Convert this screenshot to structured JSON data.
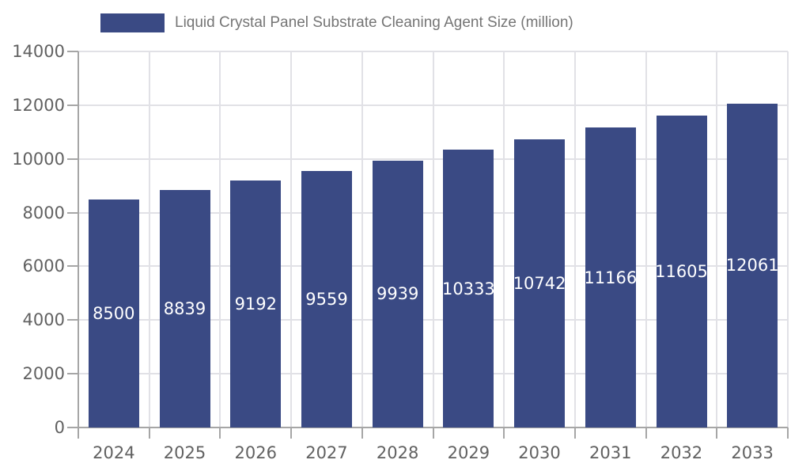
{
  "chart_data": {
    "type": "bar",
    "title": "",
    "legend_label": "Liquid Crystal Panel Substrate Cleaning Agent Size (million)",
    "legend_position": "top",
    "categories": [
      "2024",
      "2025",
      "2026",
      "2027",
      "2028",
      "2029",
      "2030",
      "2031",
      "2032",
      "2033"
    ],
    "values": [
      8500,
      8839,
      9192,
      9559,
      9939,
      10333,
      10742,
      11166,
      11605,
      12061
    ],
    "xlabel": "",
    "ylabel": "",
    "ylim": [
      0,
      14000
    ],
    "yticks": [
      0,
      2000,
      4000,
      6000,
      8000,
      10000,
      12000,
      14000
    ],
    "grid": true,
    "bar_color": "#3a4a84",
    "value_label_color": "#ffffff",
    "axis_label_color": "#616161",
    "legend_text_color": "#757575",
    "gridline_color": "#e1e1e6",
    "axis_line_color": "#a6a6a6",
    "background_color": "#ffffff"
  }
}
